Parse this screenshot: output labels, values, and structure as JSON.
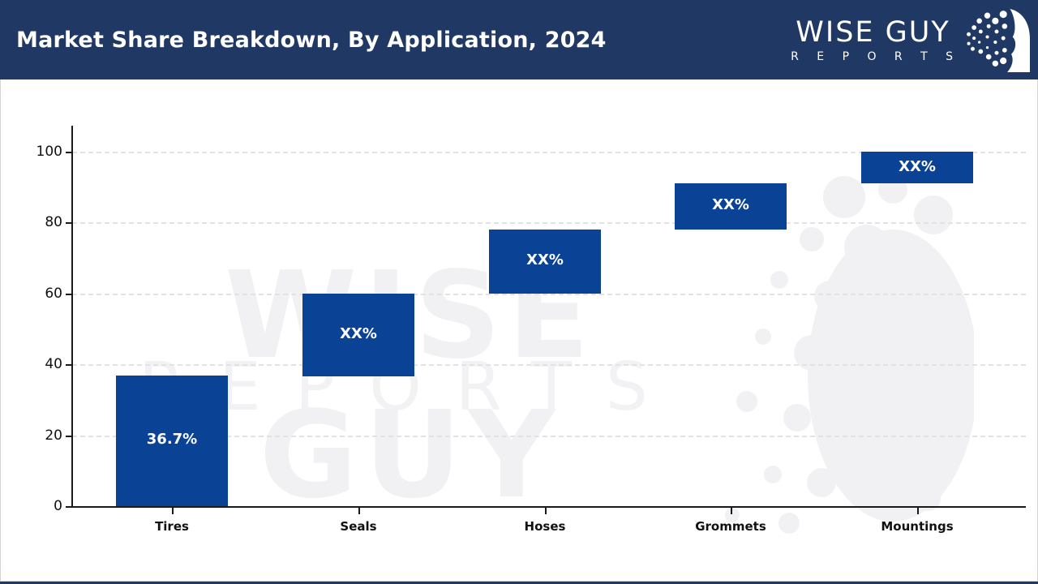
{
  "header": {
    "title": "Market Share Breakdown, By Application, 2024",
    "background_color": "#203864",
    "brand": {
      "line1": "WISE GUY",
      "line2": "R E P O R T S"
    }
  },
  "watermark": {
    "line1": "WISE GUY",
    "line2": "REPORTS"
  },
  "chart_data": {
    "type": "bar",
    "subtype": "waterfall",
    "title": "Market Share Breakdown, By Application, 2024",
    "categories": [
      "Tires",
      "Seals",
      "Hoses",
      "Grommets",
      "Mountings"
    ],
    "series": [
      {
        "name": "Market Share",
        "segment_values": [
          36.7,
          23.3,
          18,
          13,
          9
        ],
        "base": [
          0,
          36.7,
          60,
          78,
          91
        ],
        "top": [
          36.7,
          60,
          78,
          91,
          100
        ]
      }
    ],
    "bar_labels": [
      "36.7%",
      "XX%",
      "XX%",
      "XX%",
      "XX%"
    ],
    "bar_color": "#0a4296",
    "bar_label_color": "#ffffff",
    "xlabel": "",
    "ylabel": "",
    "ylim": [
      0,
      105
    ],
    "yticks": [
      0,
      20,
      40,
      60,
      80,
      100
    ],
    "grid": "horizontal-dashed",
    "legend": "none"
  }
}
